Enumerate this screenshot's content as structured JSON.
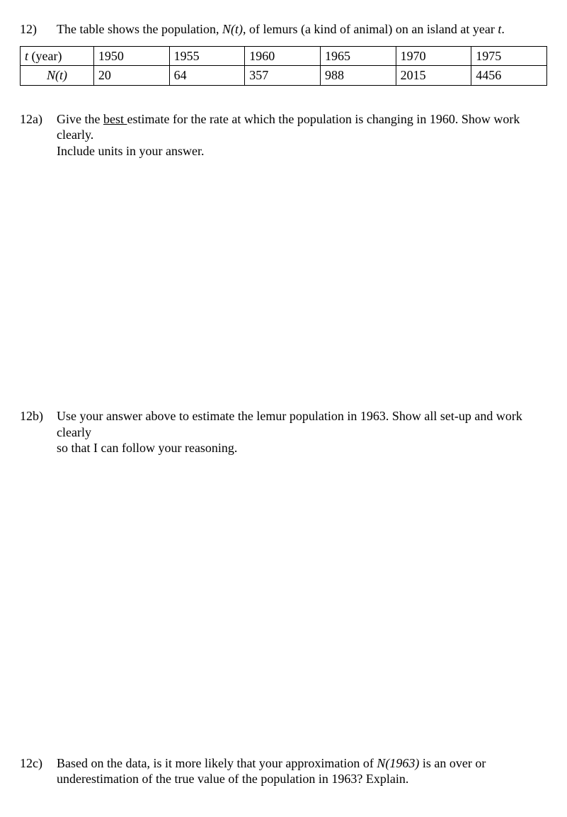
{
  "q12": {
    "number": "12)",
    "text_pre": "The table shows the population, ",
    "fn": "N(t)",
    "text_mid": ", of lemurs (a kind of animal) on an island at year ",
    "var_t": "t",
    "text_end": "."
  },
  "table": {
    "row1": {
      "label_var": "t",
      "label_unit": " (year)",
      "values": [
        "1950",
        "1955",
        "1960",
        "1965",
        "1970",
        "1975"
      ]
    },
    "row2": {
      "label_fn": "N(t)",
      "values": [
        "20",
        "64",
        "357",
        "988",
        "2015",
        "4456"
      ]
    }
  },
  "q12a": {
    "number": "12a)",
    "line1_pre": "Give the ",
    "best": "best ",
    "line1_post": "estimate for the rate at which the population is changing in 1960. Show work clearly.",
    "line2": "Include units in your answer."
  },
  "q12b": {
    "number": "12b)",
    "line1": "Use your answer above to estimate the lemur population in 1963. Show all set-up and work clearly",
    "line2": "so that I can follow your reasoning."
  },
  "q12c": {
    "number": "12c)",
    "line1_pre": "Based on the data, is it more likely that your approximation of ",
    "fn": "N(1963)",
    "line1_post": " is an over or",
    "line2": "underestimation of the true value of the population in 1963? Explain."
  }
}
